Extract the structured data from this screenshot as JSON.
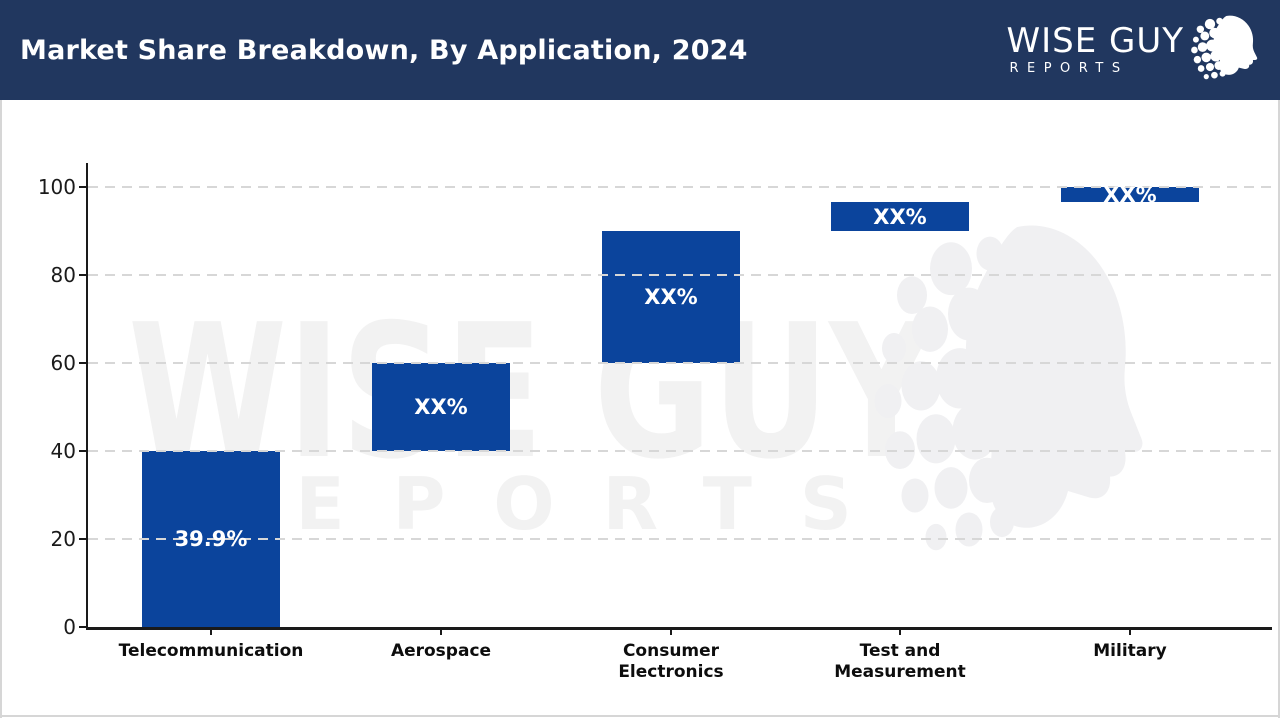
{
  "header": {
    "title": "Market Share Breakdown, By Application, 2024",
    "brand_name": "WISE GUY",
    "brand_sub": "REPORTS"
  },
  "watermark": {
    "line1": "WISE GUY",
    "line2": "REPORTS"
  },
  "colors": {
    "header_bg": "#21375f",
    "bar": "#0b449c",
    "grid": "#d7d7d7",
    "axis": "#1a1a1a",
    "bar_label": "#ffffff",
    "watermark": "#f2f2f2",
    "face_watermark": "#f0f0f2"
  },
  "chart_data": {
    "type": "bar",
    "subtype": "waterfall",
    "title": "Market Share Breakdown, By Application, 2024",
    "categories": [
      "Telecommunication",
      "Aerospace",
      "Consumer Electronics",
      "Test and Measurement",
      "Military"
    ],
    "category_label_lines": [
      [
        "Telecommunication"
      ],
      [
        "Aerospace"
      ],
      [
        "Consumer",
        "Electronics"
      ],
      [
        "Test and",
        "Measurement"
      ],
      [
        "Military"
      ]
    ],
    "segments": [
      {
        "category": "Telecommunication",
        "start": 0,
        "end": 39.9,
        "label": "39.9%"
      },
      {
        "category": "Aerospace",
        "start": 39.9,
        "end": 60,
        "label": "XX%"
      },
      {
        "category": "Consumer Electronics",
        "start": 60,
        "end": 90,
        "label": "XX%"
      },
      {
        "category": "Test and Measurement",
        "start": 90,
        "end": 96.5,
        "label": "XX%"
      },
      {
        "category": "Military",
        "start": 96.5,
        "end": 100,
        "label": "XX%"
      }
    ],
    "unit": "%",
    "ylim": [
      0,
      100
    ],
    "yticks": [
      0,
      20,
      40,
      60,
      80,
      100
    ],
    "xlabel": "",
    "ylabel": "",
    "grid": "horizontal-dashed",
    "legend": null
  }
}
